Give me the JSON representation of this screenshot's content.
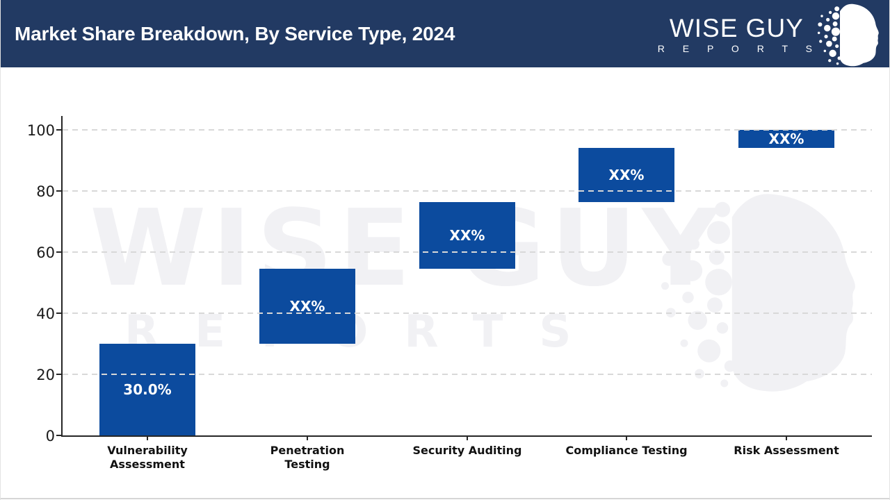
{
  "header": {
    "title": "Market Share Breakdown, By Service Type, 2024",
    "bg_color": "#223a63",
    "logo": {
      "line1": "WISE GUY",
      "line2": "R E P O R T S"
    }
  },
  "watermark": {
    "line1": "WISE GUY",
    "line2": "REPORTS"
  },
  "chart_data": {
    "type": "bar",
    "subtype": "waterfall",
    "title": "Market Share Breakdown, By Service Type, 2024",
    "categories": [
      "Vulnerability Assessment",
      "Penetration Testing",
      "Security Auditing",
      "Compliance Testing",
      "Risk Assessment"
    ],
    "category_tick_lines": [
      [
        "Vulnerability",
        "Assessment"
      ],
      [
        "Penetration",
        "Testing"
      ],
      [
        "Security Auditing"
      ],
      [
        "Compliance Testing"
      ],
      [
        "Risk Assessment"
      ]
    ],
    "segments": [
      {
        "category": "Vulnerability Assessment",
        "label": "30.0%",
        "start": 0,
        "end": 30
      },
      {
        "category": "Penetration Testing",
        "label": "XX%",
        "start": 30,
        "end": 54.5
      },
      {
        "category": "Security Auditing",
        "label": "XX%",
        "start": 54.5,
        "end": 76.4
      },
      {
        "category": "Compliance Testing",
        "label": "XX%",
        "start": 76.4,
        "end": 94
      },
      {
        "category": "Risk Assessment",
        "label": "XX%",
        "start": 94,
        "end": 100
      }
    ],
    "y_ticks": [
      0,
      20,
      40,
      60,
      80,
      100
    ],
    "ylim": [
      0,
      105
    ],
    "xlabel": "",
    "ylabel": "",
    "grid": "horizontal dashed",
    "legend": "none",
    "bar_color": "#0c4b9e",
    "bar_label_color": "#ffffff",
    "grid_color": "#d8d8d8",
    "axis_color": "#262626",
    "tick_label_color": "#1a1a1a"
  }
}
